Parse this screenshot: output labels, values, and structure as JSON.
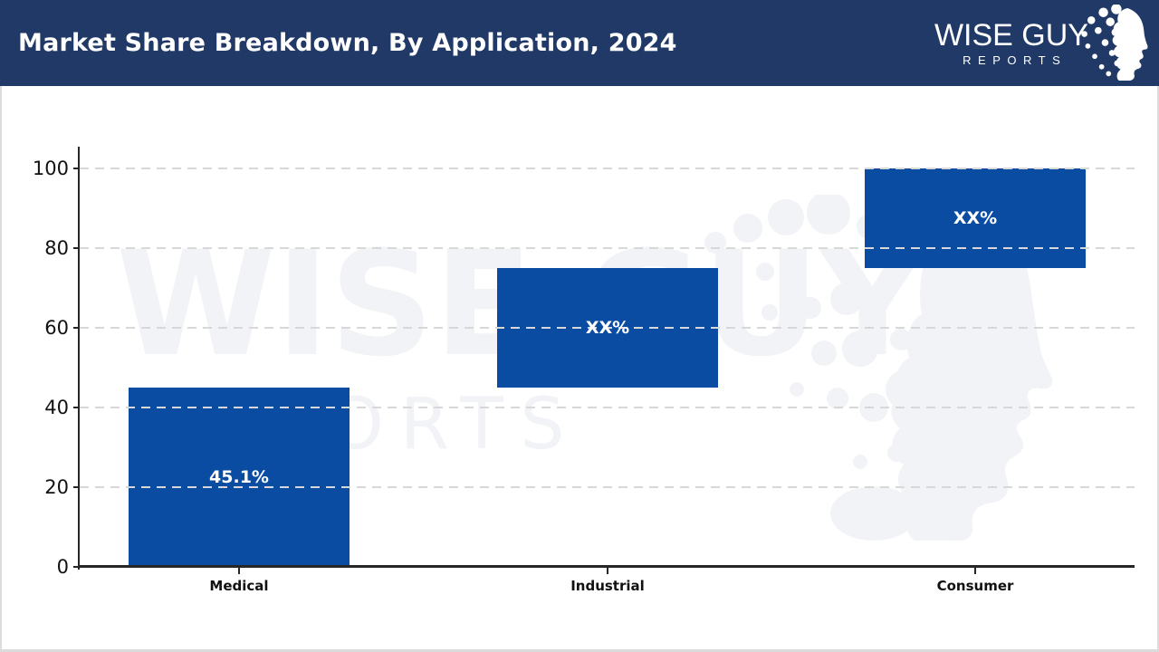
{
  "header": {
    "bg_color": "#213966",
    "title": "Market Share Breakdown, By Application, 2024",
    "logo": {
      "line1": "WISE GUY",
      "line2": "REPORTS"
    }
  },
  "watermark": {
    "line1": "WISE GUY",
    "line2": "REPORTS",
    "color": "#f2f3f6"
  },
  "chart_data": {
    "type": "bar",
    "subtype": "stacked-waterfall",
    "title": "Market Share Breakdown, By Application, 2024",
    "categories": [
      "Medical",
      "Industrial",
      "Consumer"
    ],
    "series": [
      {
        "name": "Market Share",
        "bars": [
          {
            "category": "Medical",
            "start": 0,
            "end": 45.1,
            "label": "45.1%"
          },
          {
            "category": "Industrial",
            "start": 45.1,
            "end": 75.1,
            "label": "XX%"
          },
          {
            "category": "Consumer",
            "start": 75.1,
            "end": 100,
            "label": "XX%"
          }
        ]
      }
    ],
    "ylim": [
      0,
      100
    ],
    "yticks": [
      0,
      20,
      40,
      60,
      80,
      100
    ],
    "xlabel": "",
    "ylabel": "",
    "grid": "dashed horizontal gridlines",
    "legend": "none",
    "bar_color": "#0b4ca3",
    "bar_label_color": "#ffffff",
    "axis_color": "#262626",
    "gridline_color": "#d8d8d8"
  }
}
